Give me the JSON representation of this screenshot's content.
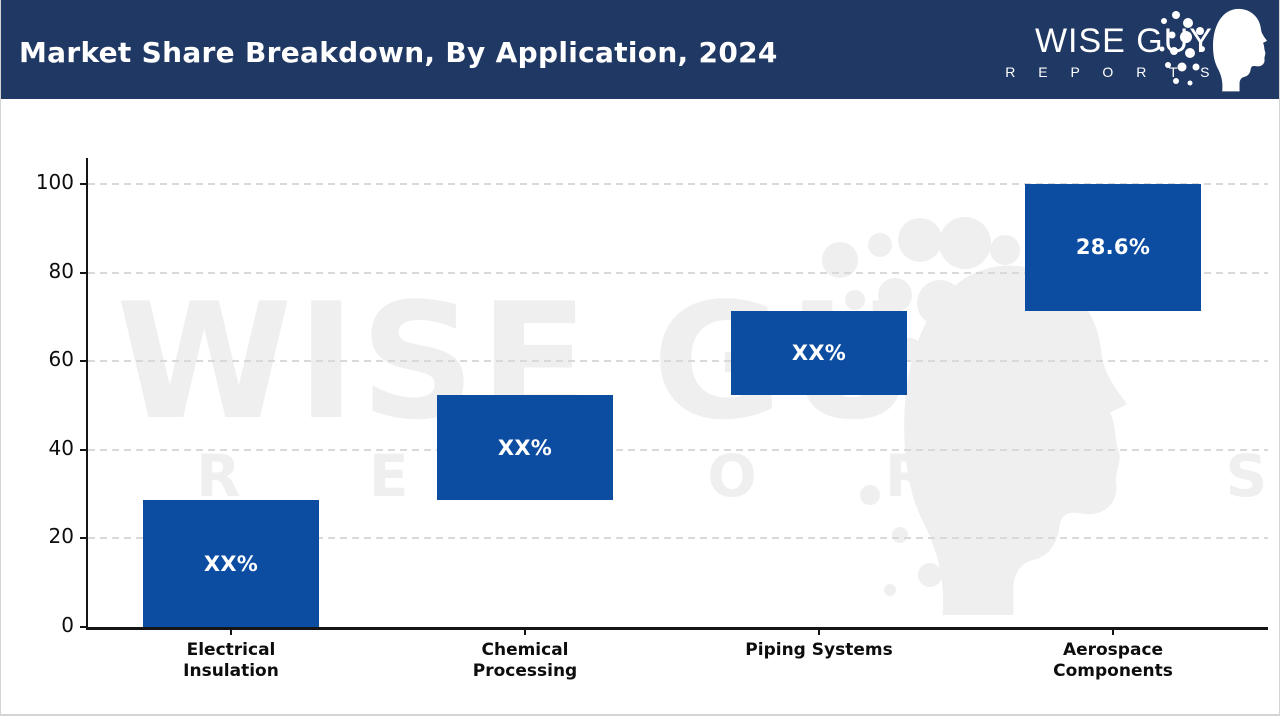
{
  "header": {
    "title": "Market Share Breakdown, By Application, 2024",
    "logo_line1": "WISE GUY",
    "logo_line2": "R E P O R T S",
    "logo_icon": "dotted-face-profile"
  },
  "watermark": {
    "line1": "WISE GUY",
    "line2": "R E P O R T S"
  },
  "chart_data": {
    "type": "bar",
    "subtype": "waterfall",
    "title": "Market Share Breakdown, By Application, 2024",
    "xlabel": "",
    "ylabel": "",
    "ylim": [
      0,
      100
    ],
    "yticks": [
      0,
      20,
      40,
      60,
      80,
      100
    ],
    "grid": "horizontal-dashed",
    "legend": "none",
    "categories": [
      "Electrical Insulation",
      "Chemical Processing",
      "Piping Systems",
      "Aerospace Components"
    ],
    "category_lines": [
      [
        "Electrical",
        "Insulation"
      ],
      [
        "Chemical",
        "Processing"
      ],
      [
        "Piping Systems"
      ],
      [
        "Aerospace",
        "Components"
      ]
    ],
    "values": [
      28.6,
      23.8,
      19.0,
      28.6
    ],
    "bars": [
      {
        "category": "Electrical Insulation",
        "start": 0,
        "end": 28.6,
        "label": "XX%"
      },
      {
        "category": "Chemical Processing",
        "start": 28.6,
        "end": 52.4,
        "label": "XX%"
      },
      {
        "category": "Piping Systems",
        "start": 52.4,
        "end": 71.4,
        "label": "XX%"
      },
      {
        "category": "Aerospace Components",
        "start": 71.4,
        "end": 100,
        "label": "28.6%"
      }
    ]
  },
  "colors": {
    "header_bg": "#203864",
    "bar": "#0c4da2",
    "bar_label": "#ffffff",
    "grid": "#d9d9d9",
    "axis": "#151515",
    "watermark": "#efefef",
    "frame": "#d4d4d4"
  }
}
